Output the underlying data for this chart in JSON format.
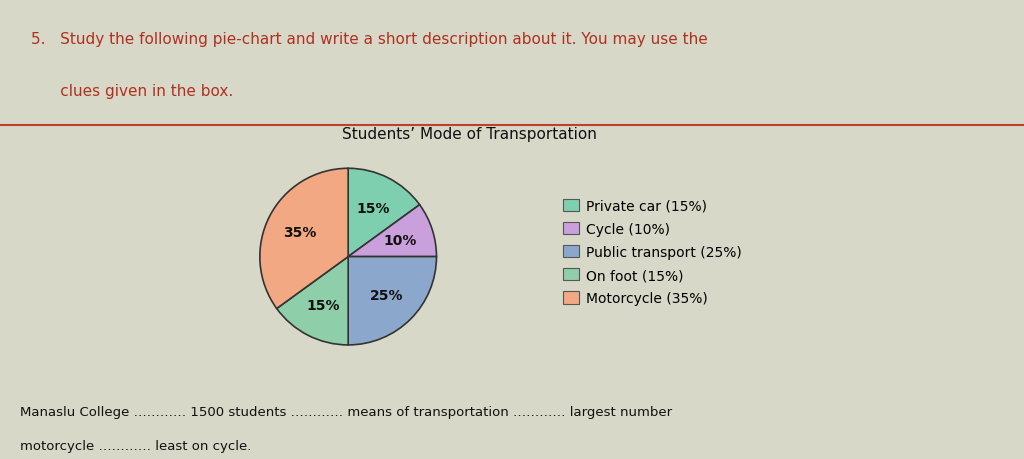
{
  "title": "Students’ Mode of Transportation",
  "slices": [
    15,
    10,
    25,
    15,
    35
  ],
  "labels": [
    "Private car (15%)",
    "Cycle (10%)",
    "Public transport (25%)",
    "On foot (15%)",
    "Motorcycle (35%)"
  ],
  "pct_labels": [
    "15%",
    "10%",
    "25%",
    "15%",
    "35%"
  ],
  "colors": [
    "#7ecfb0",
    "#c9a0dc",
    "#8ba8cc",
    "#8ecfaa",
    "#f2a882"
  ],
  "startangle": 90,
  "page_bg": "#d8d8c8",
  "box_bg": "#e8e5d5",
  "bottom_box_bg": "#e8e8d5",
  "title_fontsize": 11,
  "pct_fontsize": 10,
  "legend_fontsize": 10,
  "heading_line1": "5.   Study the following pie-chart and write a short description about it. You may use the",
  "heading_line2": "      clues given in the box.",
  "bottom_text_line1": "Manaslu College ………… 1500 students ………… means of transportation ………… largest number",
  "bottom_text_line2": "motorcycle ………… least on cycle."
}
